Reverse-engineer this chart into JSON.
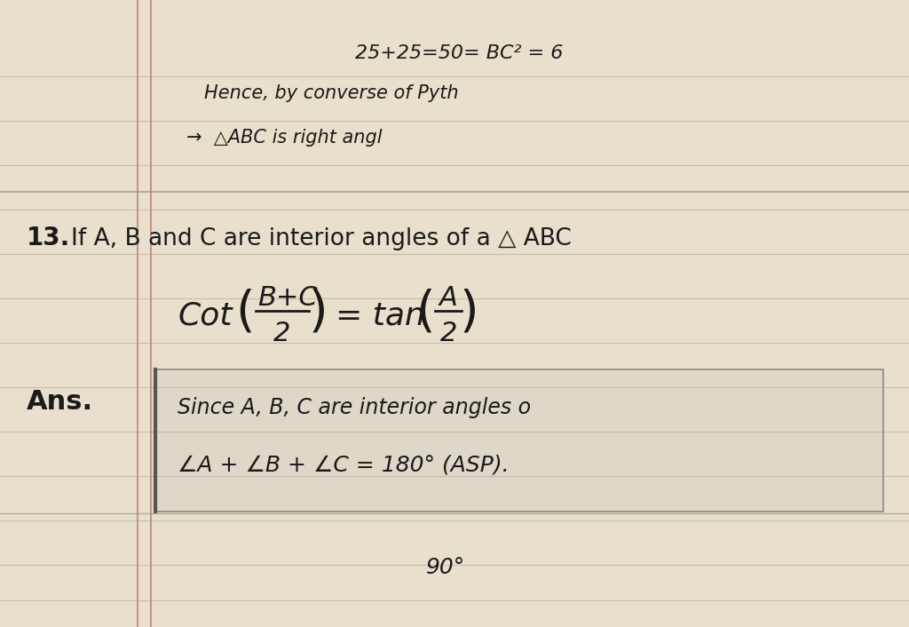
{
  "bg_color": "#d4c9b0",
  "page_color": "#e8e0cc",
  "title_top_text": "25+25=50= BC² = 6",
  "line2_text": "Hence, by converse of Pyth",
  "line3_text": "→  △ABC is right angl",
  "problem_number": "13.",
  "problem_text": "If A, B and C are interior angles of a △ ABC",
  "equation_cot": "Cot",
  "eq_numerator": "B+C",
  "eq_denominator": "2",
  "eq_equals": "= tan",
  "eq_tan_num": "A",
  "eq_tan_den": "2",
  "ans_label": "Ans.",
  "ans_line1": "Since A, B, C are interior angles o",
  "ans_line2": "∠A + ∠B + ∠C = 180° (ASP).",
  "ans_bottom": "90°",
  "left_margin_lines": true,
  "notebook_lines": true
}
